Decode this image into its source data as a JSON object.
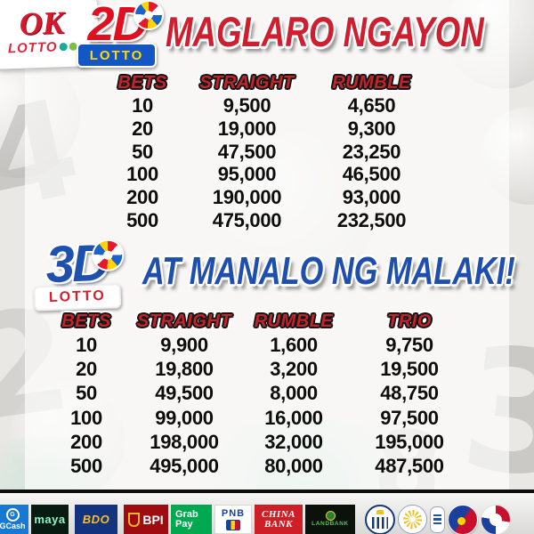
{
  "brand": {
    "ok": "OK",
    "lotto": "LOTTO"
  },
  "game_2d": {
    "logo_big": "2D",
    "logo_sub": "LOTTO",
    "headline": "MAGLARO NGAYON"
  },
  "game_3d": {
    "logo_big": "3D",
    "logo_sub": "LOTTO",
    "headline": "AT MANALO NG MALAKI!"
  },
  "table_2d": {
    "headers": [
      "BETS",
      "STRAIGHT",
      "RUMBLE"
    ],
    "rows": [
      [
        "10",
        "9,500",
        "4,650"
      ],
      [
        "20",
        "19,000",
        "9,300"
      ],
      [
        "50",
        "47,500",
        "23,250"
      ],
      [
        "100",
        "95,000",
        "46,500"
      ],
      [
        "200",
        "190,000",
        "93,000"
      ],
      [
        "500",
        "475,000",
        "232,500"
      ]
    ]
  },
  "table_3d": {
    "headers": [
      "BETS",
      "STRAIGHT",
      "RUMBLE",
      "TRIO"
    ],
    "rows": [
      [
        "10",
        "9,900",
        "1,600",
        "9,750"
      ],
      [
        "20",
        "19,800",
        "3,200",
        "19,500"
      ],
      [
        "50",
        "49,500",
        "8,000",
        "48,750"
      ],
      [
        "100",
        "99,000",
        "16,000",
        "97,500"
      ],
      [
        "200",
        "198,000",
        "32,000",
        "195,000"
      ],
      [
        "500",
        "495,000",
        "80,000",
        "487,500"
      ]
    ]
  },
  "footer": {
    "payments": {
      "gcash": {
        "label": "GCash",
        "icon_letter": "G"
      },
      "maya": {
        "label": "maya"
      },
      "bdo": {
        "label": "BDO"
      },
      "bpi": {
        "label": "BPI"
      },
      "grabpay": {
        "label": "Grab\nPay"
      },
      "pnb": {
        "label": "PNB"
      },
      "chinabank": {
        "label": "CHINA\nBANK"
      },
      "landbank": {
        "label": "LANDBANK"
      }
    }
  },
  "colors": {
    "headline_red": "#cf1f2e",
    "headline_blue": "#1e4fae",
    "table_header_red": "#c2242b",
    "number_black": "#0d0d0d",
    "logo_2d_red": "#e01020",
    "logo_3d_blue": "#1e51ad",
    "lotto_box_blue": "#1457c4",
    "lotto_box_yellow": "#ffd90a"
  }
}
